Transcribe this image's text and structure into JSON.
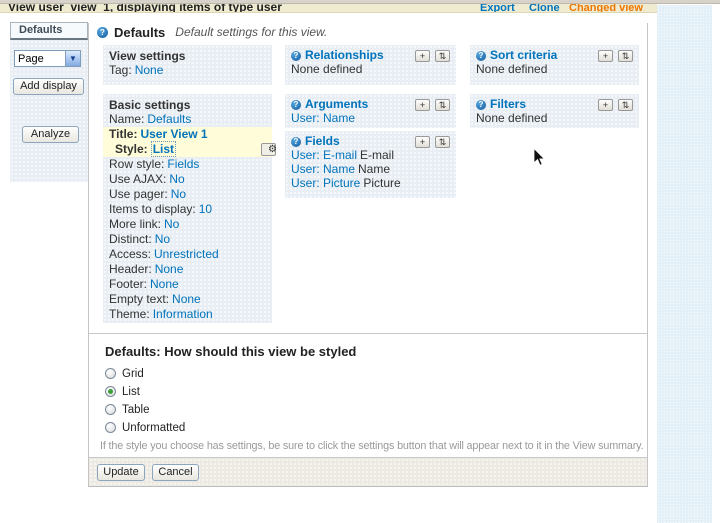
{
  "chrome": {
    "title_bar": {
      "title": "View user_view_1, displaying items of type user",
      "export_link": "Export",
      "clone_link": "Clone",
      "changed_link": "Changed view"
    }
  },
  "sidebar": {
    "tab_label": "Defaults",
    "display_select_value": "Page",
    "add_display_label": "Add display",
    "analyze_label": "Analyze"
  },
  "display_header": {
    "title": "Defaults",
    "description": "Default settings for this view."
  },
  "summary": {
    "icons": {
      "help": "?",
      "add": "+",
      "rearrange": "⇅",
      "gear": "⚙",
      "select_arrow": "▼"
    },
    "view_settings": {
      "title": "View settings",
      "label": "Tag:",
      "value": "None"
    },
    "basic_settings": {
      "title": "Basic settings",
      "rows": [
        {
          "label": "Name:",
          "value": "Defaults"
        },
        {
          "label": "Title:",
          "value": "User View 1",
          "highlight": true
        },
        {
          "label": "Style:",
          "value": "List",
          "highlight": true,
          "selected": true,
          "gear": true,
          "indent": true
        },
        {
          "label": "Row style:",
          "value": "Fields"
        },
        {
          "label": "Use AJAX:",
          "value": "No"
        },
        {
          "label": "Use pager:",
          "value": "No"
        },
        {
          "label": "Items to display:",
          "value": "10"
        },
        {
          "label": "More link:",
          "value": "No"
        },
        {
          "label": "Distinct:",
          "value": "No"
        },
        {
          "label": "Access:",
          "value": "Unrestricted"
        },
        {
          "label": "Header:",
          "value": "None"
        },
        {
          "label": "Footer:",
          "value": "None"
        },
        {
          "label": "Empty text:",
          "value": "None"
        },
        {
          "label": "Theme:",
          "value": "Information"
        }
      ]
    },
    "relationships": {
      "title": "Relationships",
      "body": "None defined"
    },
    "arguments": {
      "title": "Arguments",
      "items": [
        {
          "link": "User: Name",
          "suffix": ""
        }
      ]
    },
    "fields": {
      "title": "Fields",
      "items": [
        {
          "link": "User: E-mail",
          "suffix": "E-mail"
        },
        {
          "link": "User: Name",
          "suffix": "Name"
        },
        {
          "link": "User: Picture",
          "suffix": "Picture"
        }
      ]
    },
    "sort_criteria": {
      "title": "Sort criteria",
      "body": "None defined"
    },
    "filters": {
      "title": "Filters",
      "body": "None defined"
    }
  },
  "style_form": {
    "title": "Defaults: How should this view be styled",
    "options": [
      {
        "label": "Grid",
        "selected": false
      },
      {
        "label": "List",
        "selected": true
      },
      {
        "label": "Table",
        "selected": false
      },
      {
        "label": "Unformatted",
        "selected": false
      }
    ],
    "description": "If the style you choose has settings, be sure to click the settings button that will appear next to it in the View summary.",
    "update_label": "Update",
    "cancel_label": "Cancel"
  },
  "colors": {
    "link_blue": "#0173bb",
    "changed_orange": "#ee7700",
    "title_bar_bg": "#eeebd1",
    "highlight_yellow": "#fffcd9",
    "radio_selected_green": "#3da03d"
  }
}
